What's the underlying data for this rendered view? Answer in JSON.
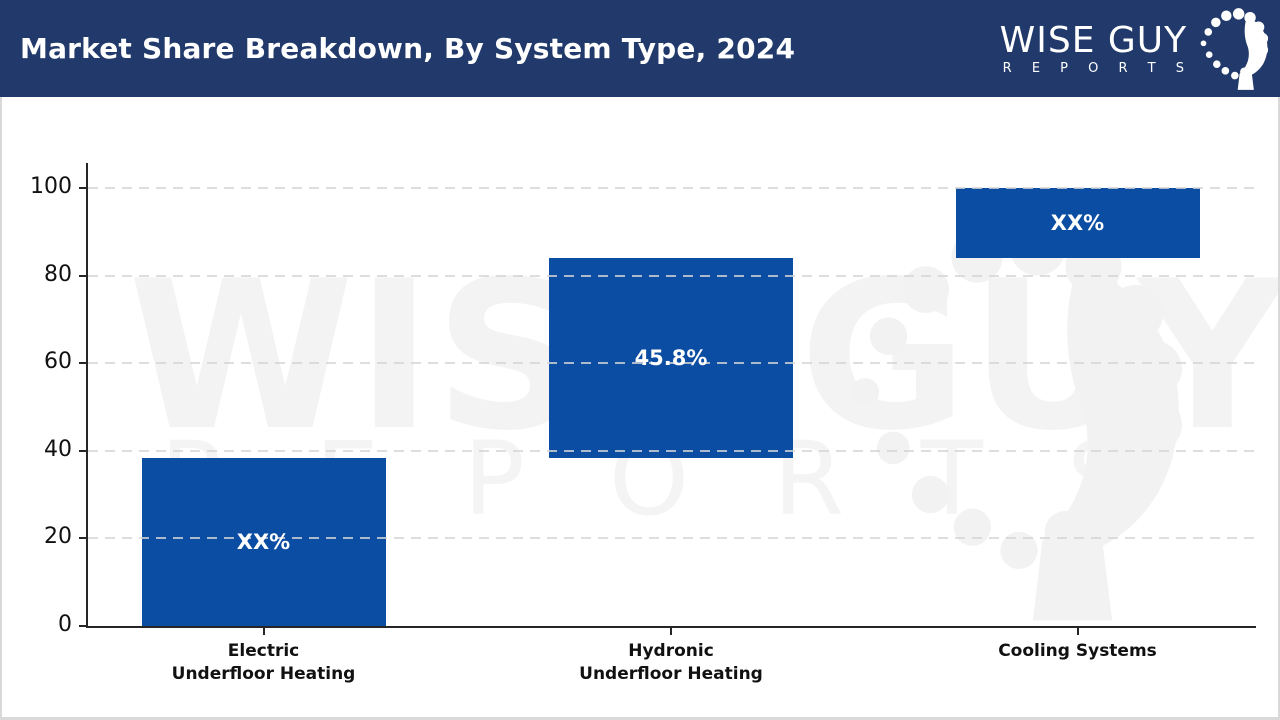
{
  "header": {
    "title": "Market Share Breakdown, By System Type, 2024",
    "logo_line1": "WISE GUY",
    "logo_line2": "R E P O R T S",
    "bg_color": "#213a6b"
  },
  "watermark": {
    "line1": "WISE GUY",
    "line2": "REPORTS"
  },
  "chart_data": {
    "type": "bar",
    "subtype": "waterfall",
    "title": "Market Share Breakdown, By System Type, 2024",
    "xlabel": "",
    "ylabel": "",
    "ylim": [
      0,
      105
    ],
    "yticks": [
      0,
      20,
      40,
      60,
      80,
      100
    ],
    "grid": "horizontal-dashed",
    "legend": false,
    "bar_color": "#0b4da2",
    "bar_label_color": "#ffffff",
    "axis_color": "#262626",
    "categories": [
      "Electric Underfloor Heating",
      "Hydronic Underfloor Heating",
      "Cooling Systems"
    ],
    "category_lines": [
      [
        "Electric",
        "Underfloor Heating"
      ],
      [
        "Hydronic",
        "Underfloor Heating"
      ],
      [
        "Cooling Systems"
      ]
    ],
    "bars": [
      {
        "category": "Electric Underfloor Heating",
        "start": 0,
        "end": 38.3,
        "value_label": "XX%"
      },
      {
        "category": "Hydronic Underfloor Heating",
        "start": 38.3,
        "end": 84.1,
        "value_label": "45.8%"
      },
      {
        "category": "Cooling Systems",
        "start": 84.1,
        "end": 100,
        "value_label": "XX%"
      }
    ]
  }
}
